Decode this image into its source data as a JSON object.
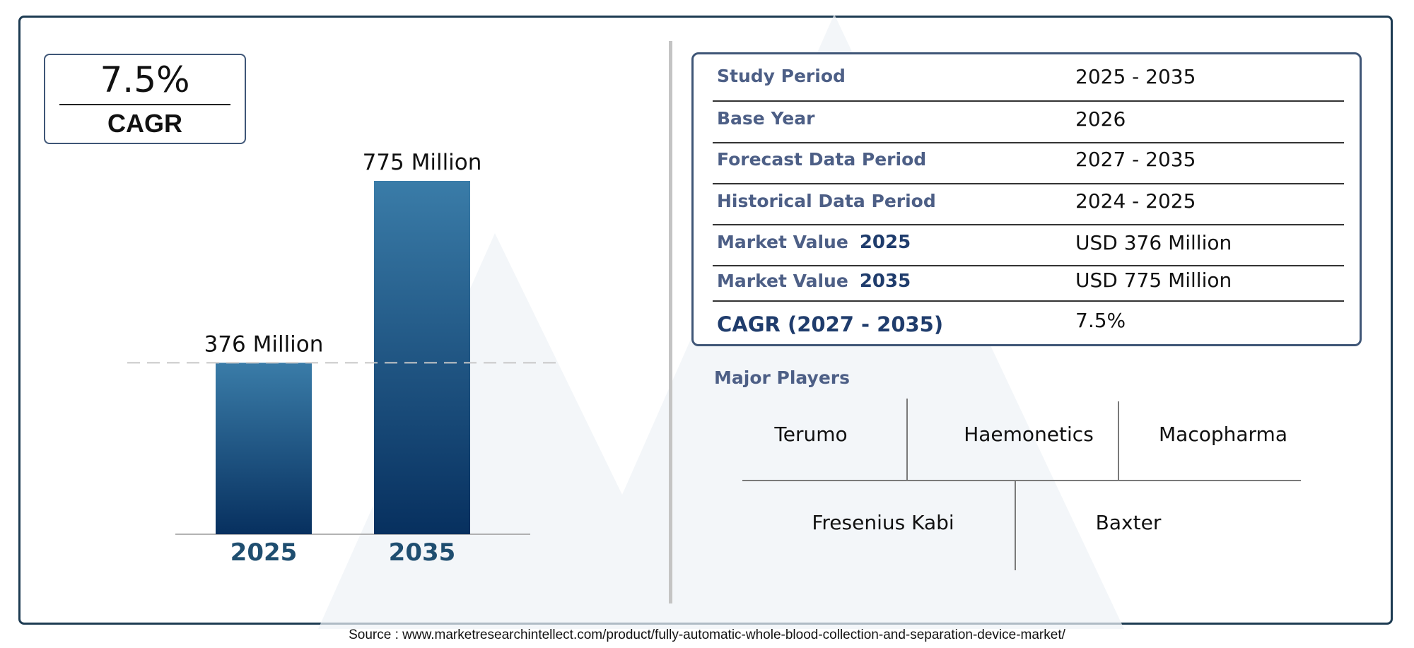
{
  "cagr_box": {
    "value": "7.5%",
    "label": "CAGR"
  },
  "chart_data": {
    "type": "bar",
    "categories": [
      "2025",
      "2035"
    ],
    "values": [
      376,
      775
    ],
    "data_labels": [
      "376 Million",
      "775 Million"
    ],
    "title": "",
    "xlabel": "",
    "ylabel": "",
    "bar_color": "#2a5d8d",
    "reference_line": "dashed at 2025 value"
  },
  "info_table": {
    "rows": [
      {
        "label": "Study Period",
        "value": "2025 - 2035"
      },
      {
        "label": "Base Year",
        "value": "2026"
      },
      {
        "label": "Forecast Data Period",
        "value": "2027 - 2035"
      },
      {
        "label": "Historical Data Period",
        "value": "2024 - 2025"
      },
      {
        "label": "Market Value",
        "year": "2025",
        "value": "USD 376 Million"
      },
      {
        "label": "Market Value",
        "year": "2035",
        "value": "USD 775 Million"
      },
      {
        "label": "CAGR (2027 - 2035)",
        "value": "7.5%"
      }
    ]
  },
  "major_players": {
    "heading": "Major Players",
    "names": [
      "Terumo",
      "Haemonetics",
      "Macopharma",
      "Fresenius Kabi",
      "Baxter"
    ]
  },
  "source": "Source : www.marketresearchintellect.com/product/fully-automatic-whole-blood-collection-and-separation-device-market/",
  "colors": {
    "accent": "#1d3b52",
    "label_blue": "#4d5f86",
    "bar_top": "#3a7ca8",
    "bar_bottom": "#07305f"
  }
}
